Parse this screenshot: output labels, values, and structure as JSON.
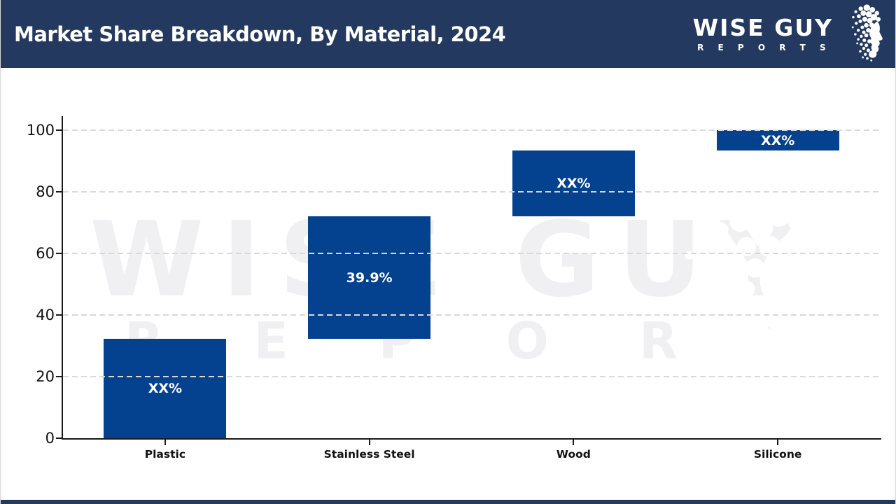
{
  "header": {
    "title": "Market Share Breakdown, By Material, 2024",
    "logo": {
      "line1": "WISE GUY",
      "line2": "R E P O R T S"
    }
  },
  "watermark": {
    "line1": "WISE GUY",
    "line2": "R E P O R T S"
  },
  "chart_data": {
    "type": "bar",
    "subtype": "waterfall",
    "title": "Market Share Breakdown, By Material, 2024",
    "categories": [
      "Plastic",
      "Stainless Steel",
      "Wood",
      "Silicone"
    ],
    "segments": [
      {
        "category": "Plastic",
        "start": 0,
        "end": 32.2,
        "label": "XX%"
      },
      {
        "category": "Stainless Steel",
        "start": 32.2,
        "end": 72.1,
        "label": "39.9%"
      },
      {
        "category": "Wood",
        "start": 72.1,
        "end": 93.4,
        "label": "XX%"
      },
      {
        "category": "Silicone",
        "start": 93.4,
        "end": 100,
        "label": "XX%"
      }
    ],
    "visible_values": {
      "Stainless Steel": 39.9
    },
    "masked_value_placeholder": "XX%",
    "xlabel": "",
    "ylabel": "",
    "ylim": [
      0,
      104.5
    ],
    "yticks": [
      0,
      20,
      40,
      60,
      80,
      100
    ],
    "grid": "horizontal dashed, drawn above bars",
    "legend": "none"
  },
  "colors": {
    "header_bg": "#24395f",
    "footer_bg": "#24395f",
    "bar": "#04418f",
    "bar_label": "#ffffff",
    "grid": "#d9d9d9",
    "axis": "#1a1a1a",
    "tick_text": "#111111",
    "watermark": "#f0f0f2"
  }
}
